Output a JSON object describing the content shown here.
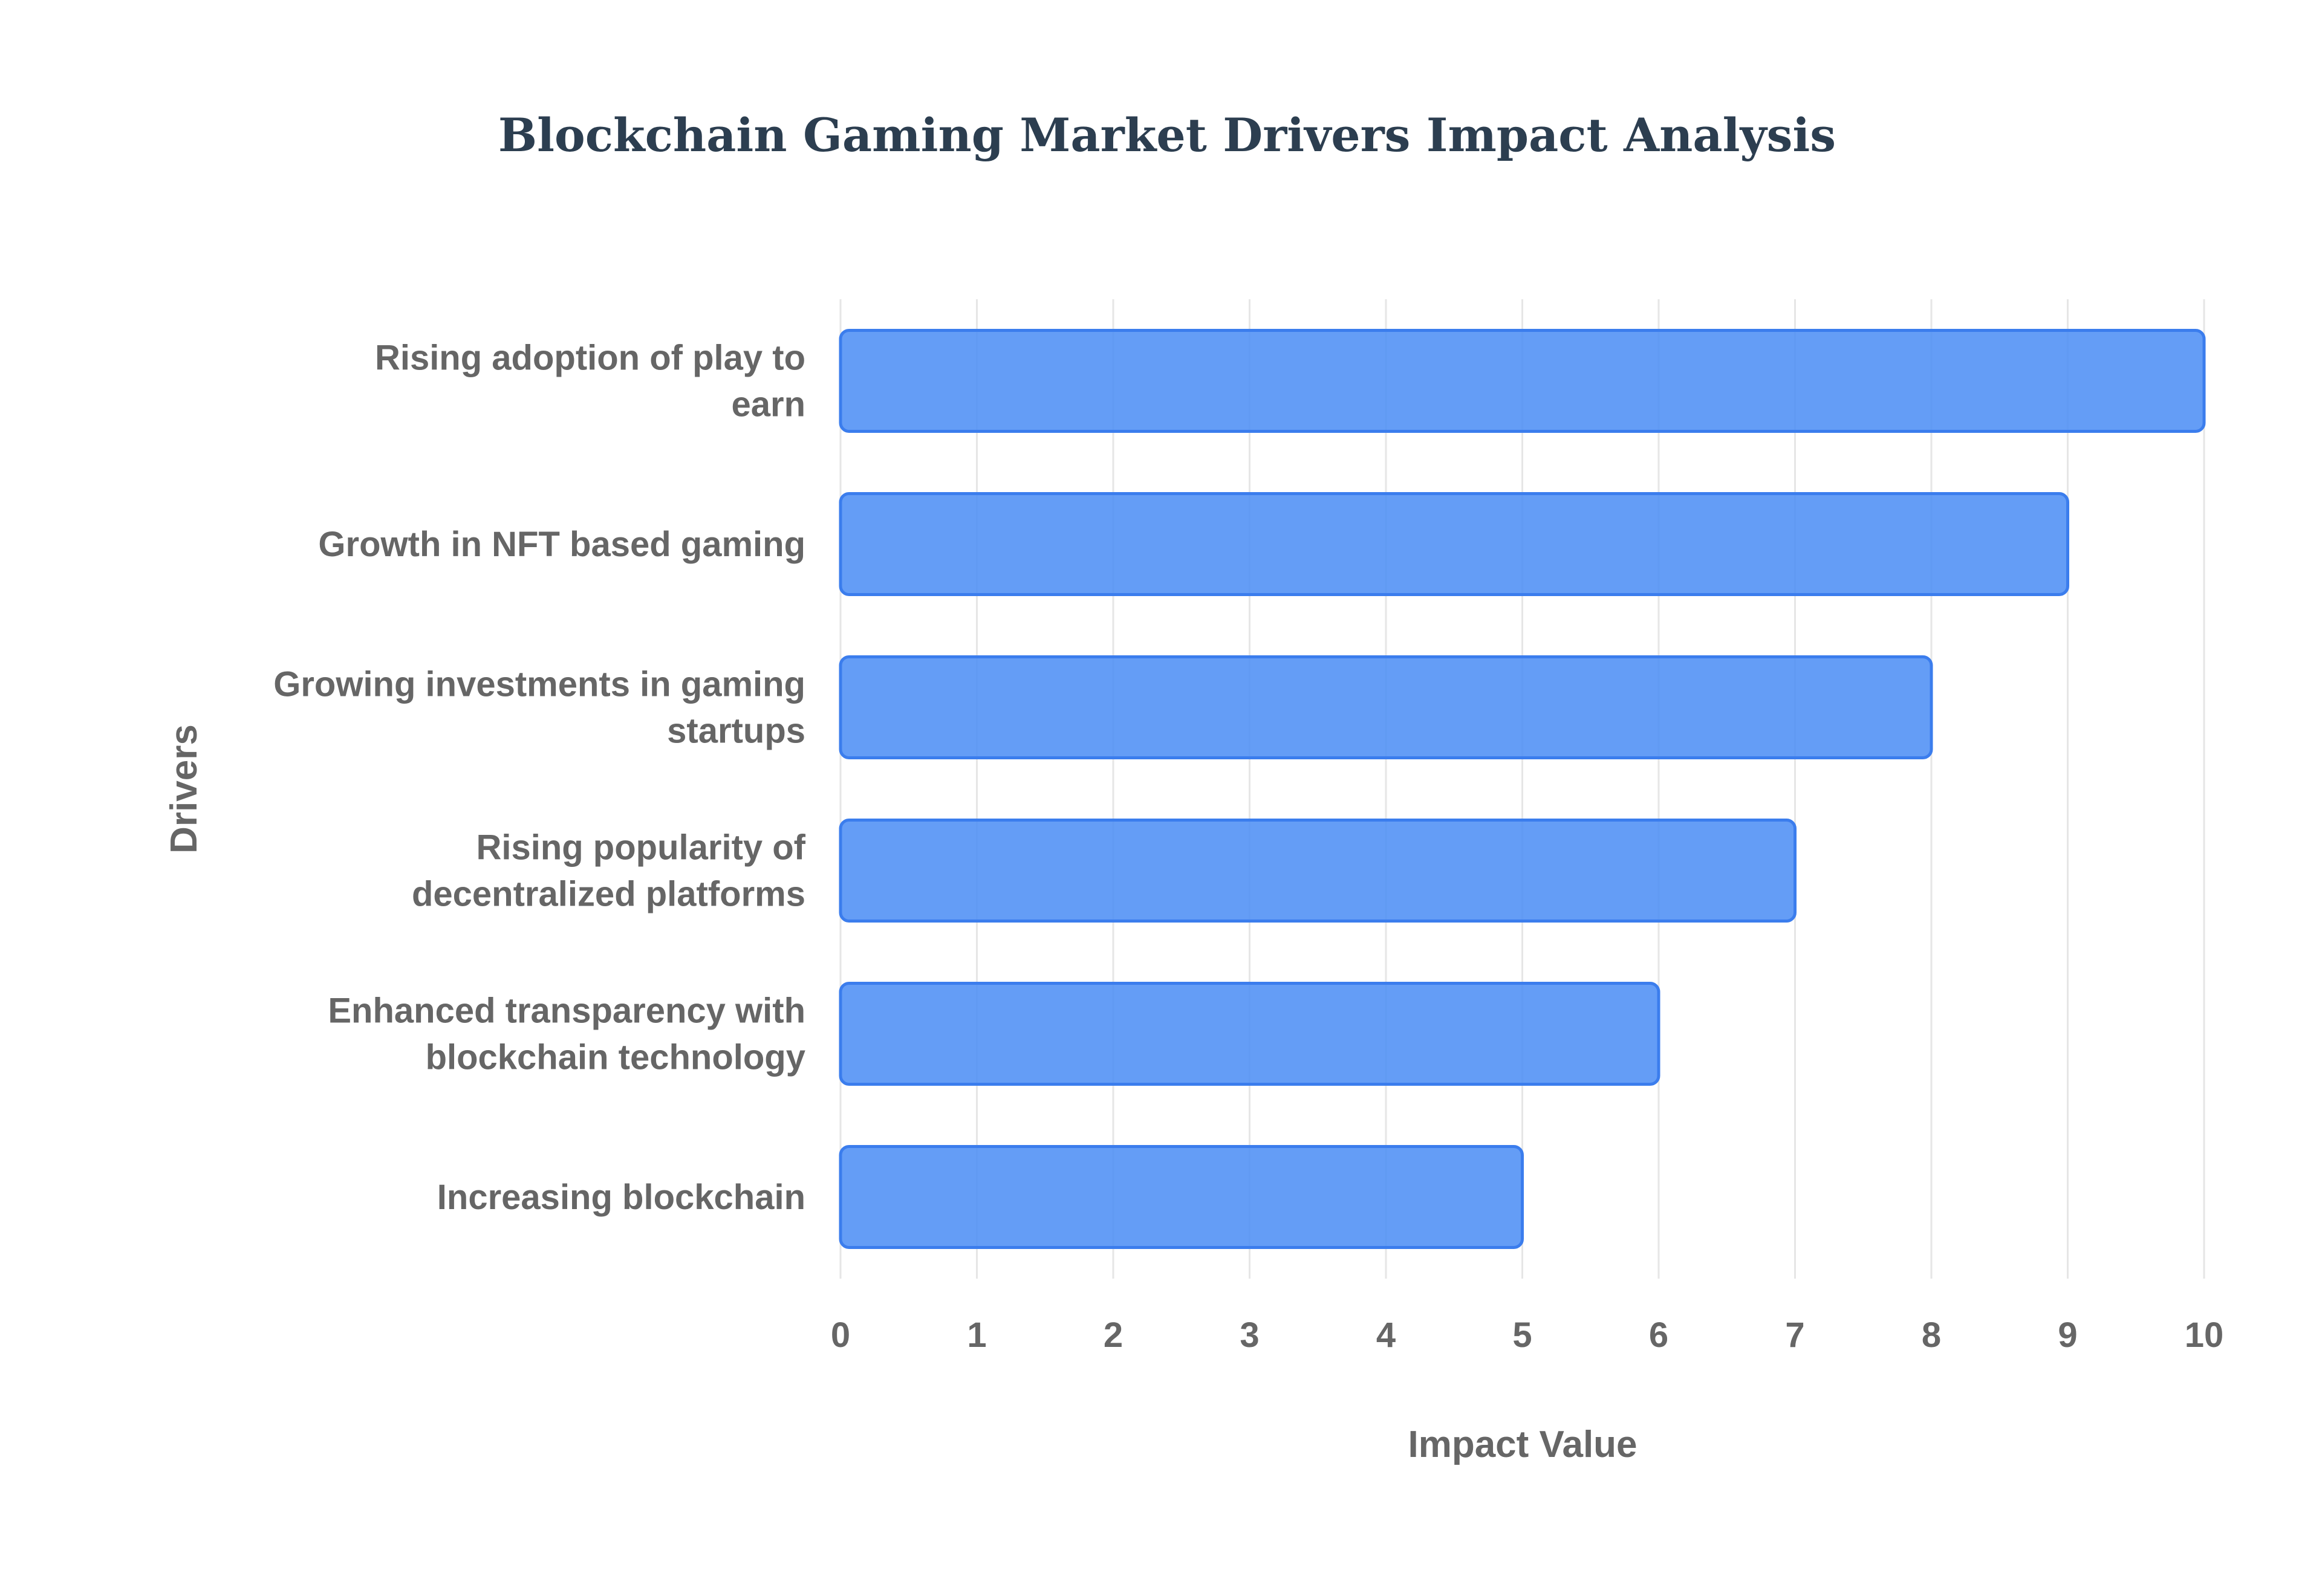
{
  "chart_data": {
    "type": "bar",
    "orientation": "horizontal",
    "title": "Blockchain Gaming Market Drivers Impact Analysis",
    "xlabel": "Impact Value",
    "ylabel": "Drivers",
    "categories": [
      [
        "Rising adoption of play to",
        "earn"
      ],
      [
        "Growth in NFT based gaming"
      ],
      [
        "Growing investments in gaming",
        "startups"
      ],
      [
        "Rising popularity of",
        "decentralized platforms"
      ],
      [
        "Enhanced transparency with",
        "blockchain technology"
      ],
      [
        "Increasing blockchain"
      ]
    ],
    "values": [
      10,
      9,
      8,
      7,
      6,
      5
    ],
    "xlim": [
      0,
      10
    ],
    "xticks": [
      "0",
      "1",
      "2",
      "3",
      "4",
      "5",
      "6",
      "7",
      "8",
      "9",
      "10"
    ],
    "grid": true,
    "legend": "none",
    "colors": {
      "bar_fill": "#4f8ff5",
      "bar_stroke": "#3b7ded",
      "text": "#666666",
      "title": "#2c3e50",
      "grid": "#e6e6e6"
    }
  }
}
